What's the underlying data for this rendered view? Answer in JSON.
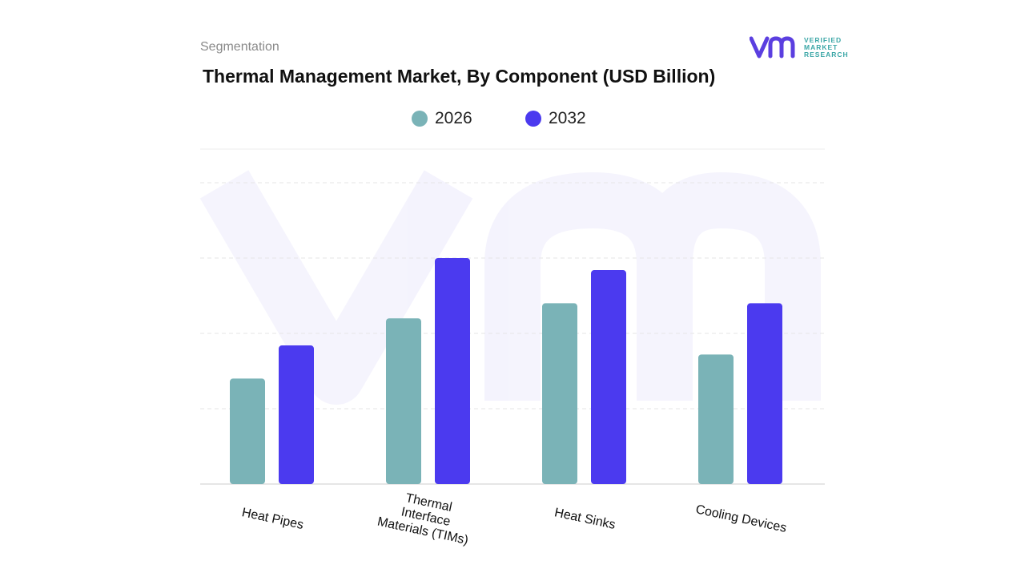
{
  "header": {
    "segment_label": "Segmentation",
    "title": "Thermal Management Market, By Component (USD Billion)"
  },
  "brand": {
    "line1": "VERIFIED",
    "line2": "MARKET",
    "line3": "RESEARCH",
    "mark_color": "#5b3fe0",
    "text_color": "#3aa6a6"
  },
  "chart_data": {
    "type": "bar",
    "title": "Thermal Management Market, By Component (USD Billion)",
    "xlabel": "",
    "ylabel": "",
    "ylim": [
      0,
      100
    ],
    "grid": true,
    "legend_position": "top-center",
    "categories": [
      "Heat Pipes",
      "Thermal Interface Materials (TIMs)",
      "Heat Sinks",
      "Cooling Devices"
    ],
    "series": [
      {
        "name": "2026",
        "color": "#7ab3b7",
        "values": [
          35,
          55,
          60,
          43
        ]
      },
      {
        "name": "2032",
        "color": "#4b3aef",
        "values": [
          46,
          75,
          71,
          60
        ]
      }
    ]
  }
}
